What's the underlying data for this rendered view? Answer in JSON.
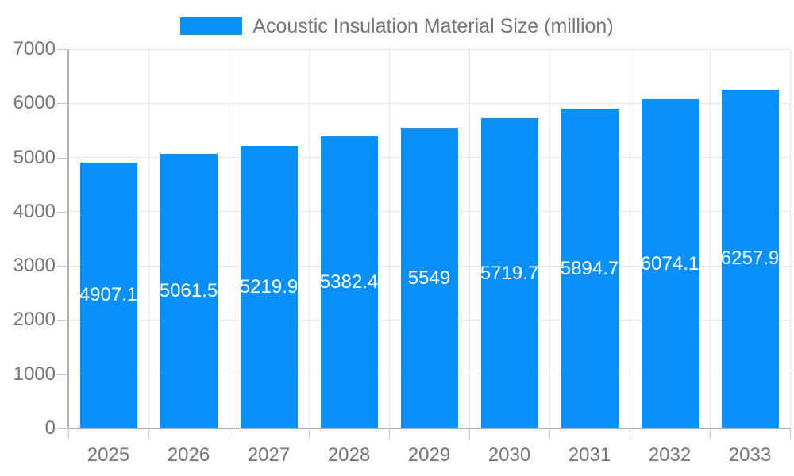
{
  "legend": {
    "label": "Acoustic Insulation Material Size (million)"
  },
  "colors": {
    "bar": "#0890F8",
    "grid": "#e6e6e6",
    "axis": "#b0b0b0",
    "tick": "#c9c9c9",
    "axis_text": "#757575",
    "bar_label_text": "#ffffff"
  },
  "chart_data": {
    "type": "bar",
    "title": "Acoustic Insulation Material Size (million)",
    "xlabel": "",
    "ylabel": "",
    "categories": [
      "2025",
      "2026",
      "2027",
      "2028",
      "2029",
      "2030",
      "2031",
      "2032",
      "2033"
    ],
    "values": [
      4907.1,
      5061.5,
      5219.9,
      5382.4,
      5549,
      5719.7,
      5894.7,
      6074.1,
      6257.9
    ],
    "bar_labels": [
      "4907.1",
      "5061.5",
      "5219.9",
      "5382.4",
      "5549",
      "5719.7",
      "5894.7",
      "6074.1",
      "6257.9"
    ],
    "ylim": [
      0,
      7000
    ],
    "yticks": [
      0,
      1000,
      2000,
      3000,
      4000,
      5000,
      6000,
      7000
    ],
    "grid": true,
    "legend_position": "top-center",
    "value_label_position": "inside-center"
  }
}
